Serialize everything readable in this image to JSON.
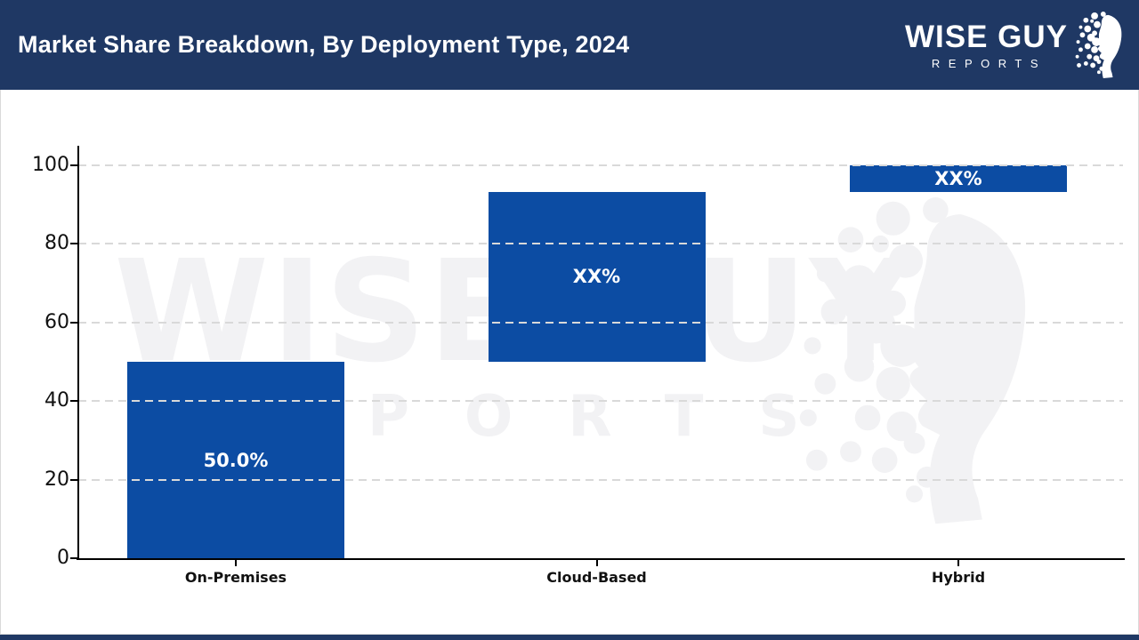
{
  "header": {
    "title": "Market Share Breakdown, By Deployment Type, 2024",
    "logo": {
      "line1": "WISE GUY",
      "line2": "REPORTS"
    }
  },
  "watermark": {
    "line1": "WISE GUY",
    "line2": "REPORTS"
  },
  "colors": {
    "header_bg": "#1F3864",
    "footer_bg": "#1F3864",
    "bar": "#0C4CA3",
    "grid": "#D9D9D9",
    "axis": "#000000",
    "watermark": "#F2F2F4",
    "bar_label": "#FFFFFF"
  },
  "chart_data": {
    "type": "bar",
    "subtype": "waterfall-stacked-percent",
    "title": "Market Share Breakdown, By Deployment Type, 2024",
    "xlabel": "",
    "ylabel": "",
    "categories": [
      "On-Premises",
      "Cloud-Based",
      "Hybrid"
    ],
    "segments": [
      {
        "category": "On-Premises",
        "start": 0,
        "end": 50,
        "label": "50.0%"
      },
      {
        "category": "Cloud-Based",
        "start": 50,
        "end": 93.3,
        "label": "XX%"
      },
      {
        "category": "Hybrid",
        "start": 93.3,
        "end": 100,
        "label": "XX%"
      }
    ],
    "yticks": [
      0,
      20,
      40,
      60,
      80,
      100
    ],
    "ylim": [
      0,
      105
    ],
    "grid": "horizontal-dashed",
    "legend": "none",
    "gridlines_above_bars": true
  }
}
